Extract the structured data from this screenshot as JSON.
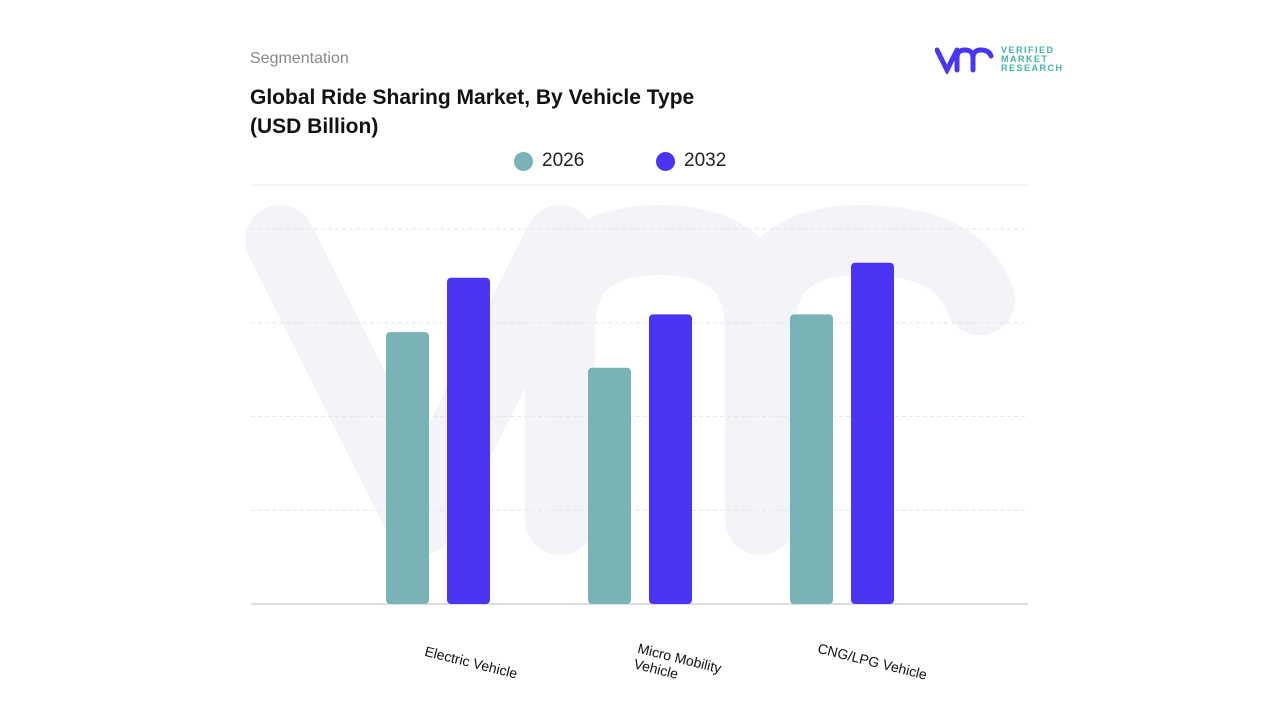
{
  "header": {
    "segment_label": "Segmentation",
    "title_line1": "Global Ride Sharing Market, By Vehicle Type",
    "title_line2": "(USD Billion)"
  },
  "logo": {
    "line1": "VERIFIED",
    "line2": "MARKET",
    "line3": "RESEARCH",
    "mark": "vmr"
  },
  "chart_data": {
    "type": "bar",
    "title": "Global Ride Sharing Market, By Vehicle Type (USD Billion)",
    "categories": [
      "Electric Vehicle",
      "Micro Mobility Vehicle",
      "CNG/LPG Vehicle"
    ],
    "series": [
      {
        "name": "2026",
        "color": "#7ab3b6",
        "values": [
          2.9,
          2.52,
          3.09
        ]
      },
      {
        "name": "2032",
        "color": "#4b35f5",
        "values": [
          3.48,
          3.09,
          3.64
        ]
      }
    ],
    "ylim": [
      0,
      4
    ],
    "grid": true,
    "legend": "top-center",
    "xlabel": "",
    "ylabel": ""
  }
}
